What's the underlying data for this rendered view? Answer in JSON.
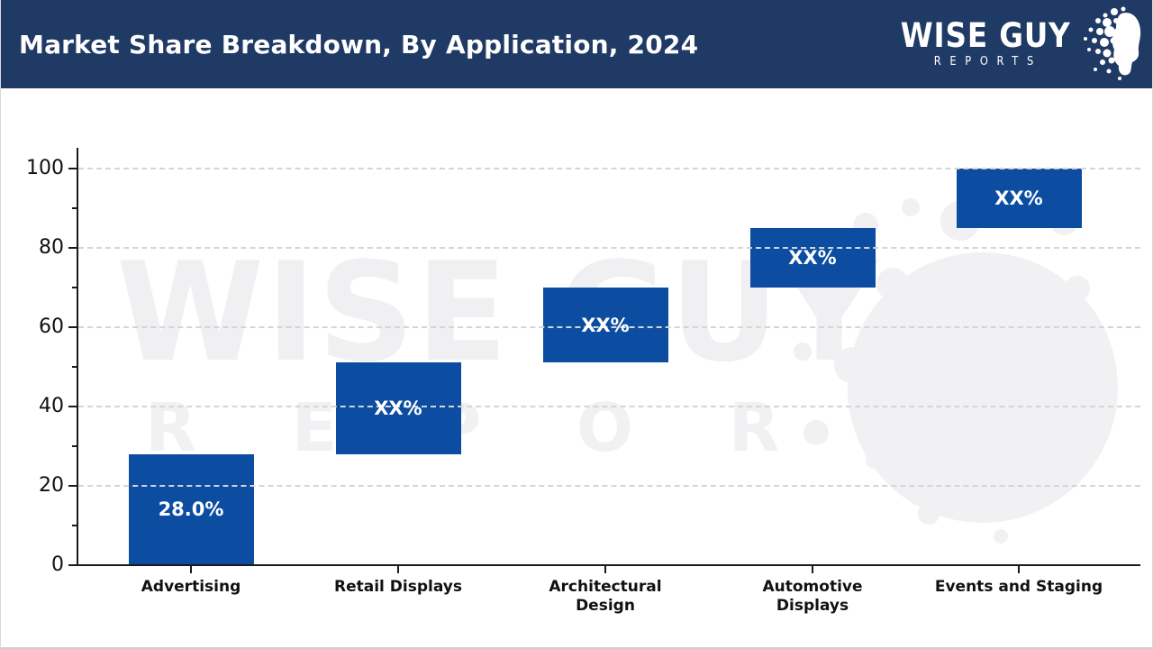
{
  "header": {
    "title": "Market Share Breakdown, By Application, 2024",
    "logo": {
      "line1": "WISE GUY",
      "line2": "REPORTS"
    }
  },
  "watermark": {
    "line1": "WISE GUY",
    "line2": "R E P O R T S"
  },
  "chart_data": {
    "type": "bar",
    "subtype": "floating-segment-breakdown",
    "title": "Market Share Breakdown, By Application, 2024",
    "categories": [
      "Advertising",
      "Retail Displays",
      "Architectural Design",
      "Automotive Displays",
      "Events and Staging"
    ],
    "category_label_lines": [
      [
        "Advertising"
      ],
      [
        "Retail Displays"
      ],
      [
        "Architectural",
        "Design"
      ],
      [
        "Automotive",
        "Displays"
      ],
      [
        "Events and Staging"
      ]
    ],
    "bars": [
      {
        "category": "Advertising",
        "start": 0,
        "end": 28,
        "value": 28,
        "value_label": "28.0%"
      },
      {
        "category": "Retail Displays",
        "start": 28,
        "end": 51,
        "value": 23,
        "value_label": "XX%"
      },
      {
        "category": "Architectural Design",
        "start": 51,
        "end": 70,
        "value": 19,
        "value_label": "XX%"
      },
      {
        "category": "Automotive Displays",
        "start": 70,
        "end": 85,
        "value": 15,
        "value_label": "XX%"
      },
      {
        "category": "Events and Staging",
        "start": 85,
        "end": 100,
        "value": 15,
        "value_label": "XX%"
      }
    ],
    "yticks": [
      0,
      20,
      40,
      60,
      80,
      100
    ],
    "minor_yticks": [
      10,
      30,
      50,
      70,
      90
    ],
    "ylim": [
      0,
      105
    ],
    "xlabel": "",
    "ylabel": "",
    "grid": "horizontal-dashed",
    "legend": "none",
    "bar_color": "#0c4da2",
    "value_label_color": "#ffffff"
  },
  "colors": {
    "header_bg": "#203a66",
    "bar": "#0c4da2",
    "grid": "#d5d5d5",
    "axis": "#1a1a1a",
    "watermark": "#f0f0f3"
  }
}
